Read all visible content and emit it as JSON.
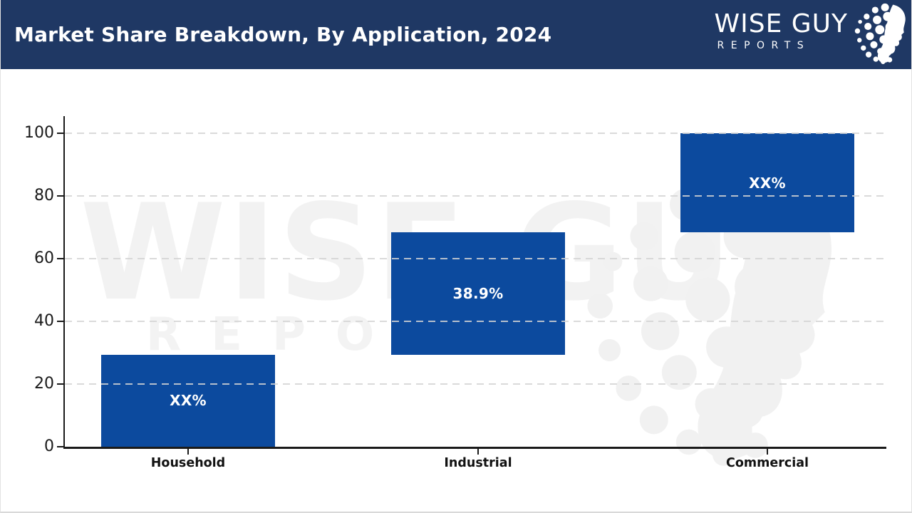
{
  "header": {
    "title": "Market Share Breakdown, By Application, 2024",
    "logo": {
      "name": "WISE GUY",
      "tagline": "REPORTS"
    }
  },
  "watermark": {
    "line1": "WISE GUY",
    "line2": "REPORTS"
  },
  "chart_data": {
    "type": "bar",
    "subtype": "stacked-waterfall",
    "title": "Market Share Breakdown, By Application, 2024",
    "categories": [
      "Household",
      "Industrial",
      "Commercial"
    ],
    "segments": [
      {
        "category": "Household",
        "start": 0,
        "end": 29.4,
        "value_label": "XX%"
      },
      {
        "category": "Industrial",
        "start": 29.4,
        "end": 68.3,
        "value_label": "38.9%"
      },
      {
        "category": "Commercial",
        "start": 68.3,
        "end": 100,
        "value_label": "XX%"
      }
    ],
    "yticks": [
      0,
      20,
      40,
      60,
      80,
      100
    ],
    "ylim": [
      0,
      100
    ],
    "xlabel": "",
    "ylabel": "",
    "grid": "horizontal-dashed",
    "legend": "none",
    "bar_color": "#0c4a9e"
  },
  "colors": {
    "header_bg": "#1f3864",
    "bar": "#0c4a9e",
    "grid_line": "#d4d4d4",
    "axis": "#1a1a1a",
    "bar_label": "#ffffff",
    "watermark": "#f2f2f2",
    "bottom_rule": "#d9d9d9"
  }
}
